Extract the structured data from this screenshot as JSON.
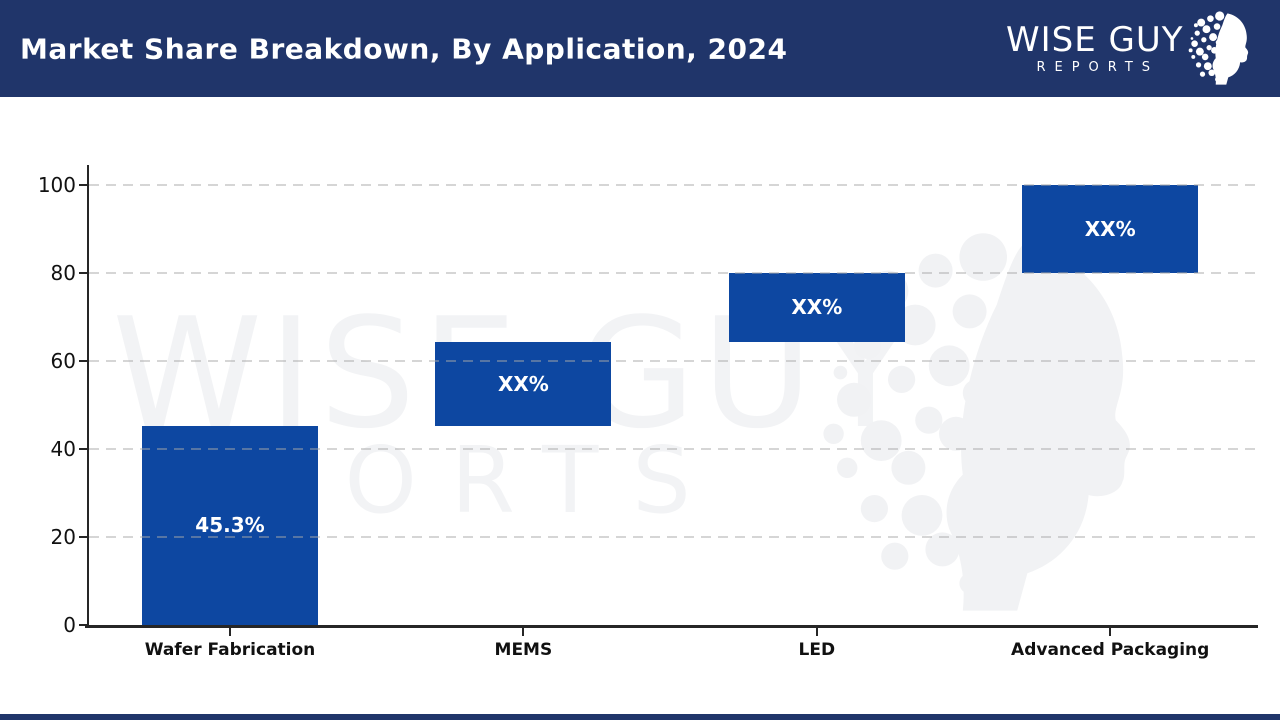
{
  "header": {
    "title": "Market Share Breakdown, By Application, 2024",
    "bg_color": "#20356a",
    "logo": {
      "line1": "WISE GUY",
      "line2": "REPORTS"
    }
  },
  "watermark": {
    "line1": "WISE GUY",
    "line2": "PORTS",
    "head_icon": "dotted-head-profile"
  },
  "chart_data": {
    "type": "bar",
    "subtype": "waterfall",
    "title": "Market Share Breakdown, By Application, 2024",
    "xlabel": "",
    "ylabel": "",
    "ylim": [
      0,
      100
    ],
    "yticks": [
      0,
      20,
      40,
      60,
      80,
      100
    ],
    "grid": "dashed-horizontal",
    "legend": "none",
    "bar_color": "#0d47a1",
    "value_label_color": "#ffffff",
    "categories": [
      "Wafer Fabrication",
      "MEMS",
      "LED",
      "Advanced Packaging"
    ],
    "series": [
      {
        "name": "Market Share",
        "segments": [
          {
            "category": "Wafer Fabrication",
            "start": 0,
            "end": 45.3,
            "value": 45.3,
            "label": "45.3%"
          },
          {
            "category": "MEMS",
            "start": 45.3,
            "end": 64.4,
            "value": 19.1,
            "label": "XX%"
          },
          {
            "category": "LED",
            "start": 64.4,
            "end": 80.0,
            "value": 15.6,
            "label": "XX%"
          },
          {
            "category": "Advanced Packaging",
            "start": 80.0,
            "end": 100.0,
            "value": 20.0,
            "label": "XX%"
          }
        ]
      }
    ]
  }
}
